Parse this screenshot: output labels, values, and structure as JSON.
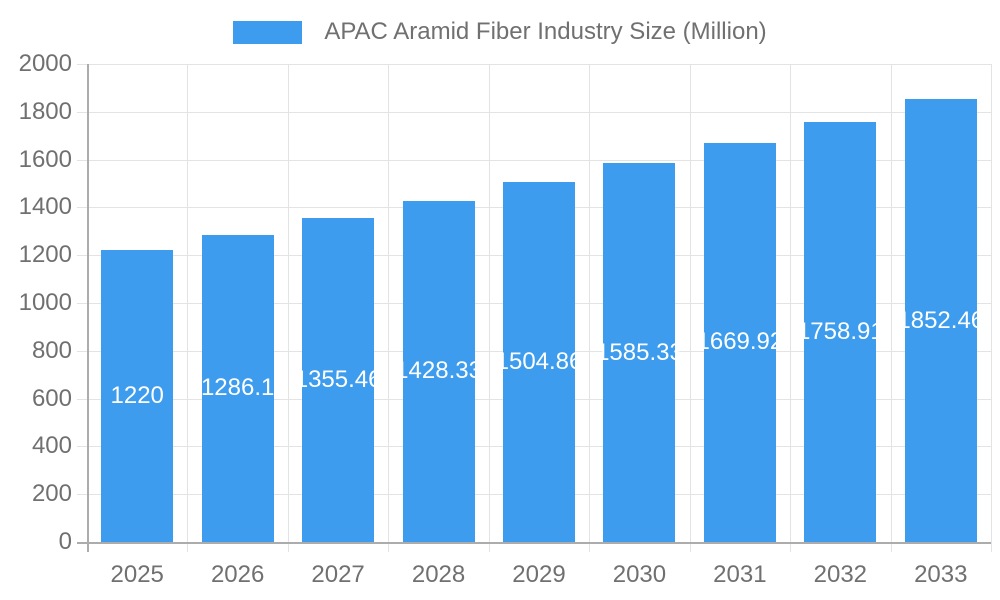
{
  "legend": {
    "label": "APAC Aramid Fiber Industry Size (Million)"
  },
  "chart_data": {
    "type": "bar",
    "title": "APAC Aramid Fiber Industry Size (Million)",
    "categories": [
      "2025",
      "2026",
      "2027",
      "2028",
      "2029",
      "2030",
      "2031",
      "2032",
      "2033"
    ],
    "series": [
      {
        "name": "APAC Aramid Fiber Industry Size (Million)",
        "values": [
          1220,
          1286.1,
          1355.46,
          1428.33,
          1504.86,
          1585.33,
          1669.92,
          1758.91,
          1852.46
        ]
      }
    ],
    "bar_value_labels": [
      "1220",
      "1286.1",
      "1355.46",
      "1428.33",
      "1504.86",
      "1585.33",
      "1669.92",
      "1758.91",
      "1852.46"
    ],
    "xlabel": "",
    "ylabel": "",
    "ylim": [
      0,
      2000
    ],
    "y_ticks": [
      0,
      200,
      400,
      600,
      800,
      1000,
      1200,
      1400,
      1600,
      1800,
      2000
    ],
    "grid": "on",
    "legend_position": "top",
    "colors": {
      "bar": "#3d9cee",
      "bar_label_text": "#ffffff",
      "axis_text": "#707070",
      "grid_line": "#e3e3e3",
      "axis_line": "#acacac",
      "background": "#ffffff"
    }
  }
}
